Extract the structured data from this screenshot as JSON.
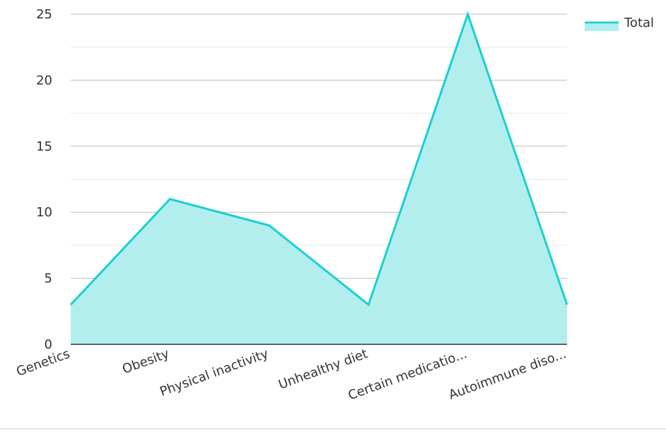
{
  "chart_data": {
    "type": "area",
    "categories": [
      "Genetics",
      "Obesity",
      "Physical inactivity",
      "Unhealthy diet",
      "Certain medicatio...",
      "Autoimmune diso..."
    ],
    "series": [
      {
        "name": "Total",
        "values": [
          3,
          11,
          9,
          3,
          25,
          3
        ]
      }
    ],
    "ylim": [
      0,
      25
    ],
    "yticks": [
      "0",
      "5",
      "10",
      "15",
      "20",
      "25"
    ],
    "title": "",
    "xlabel": "",
    "ylabel": "",
    "grid": true,
    "legend_position": "top-right",
    "colors": {
      "line": "#1ccfcf",
      "fill": "#b2eeee",
      "grid_major": "#bdbdbd",
      "grid_minor": "#e6e6e6",
      "axis": "#333333"
    }
  }
}
